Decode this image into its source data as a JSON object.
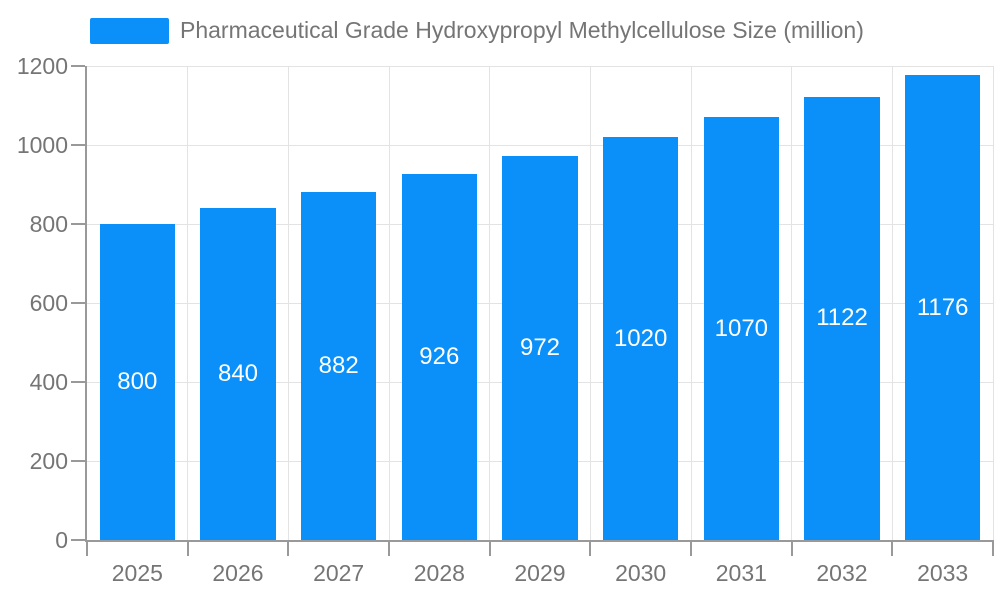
{
  "chart_data": {
    "type": "bar",
    "title": "Pharmaceutical Grade Hydroxypropyl Methylcellulose Size (million)",
    "categories": [
      "2025",
      "2026",
      "2027",
      "2028",
      "2029",
      "2030",
      "2031",
      "2032",
      "2033"
    ],
    "values": [
      800,
      840,
      882,
      926,
      972,
      1020,
      1070,
      1122,
      1176
    ],
    "xlabel": "",
    "ylabel": "",
    "ylim": [
      0,
      1200
    ],
    "y_ticks": [
      0,
      200,
      400,
      600,
      800,
      1000,
      1200
    ],
    "grid": "on",
    "legend_position": "top-left",
    "bar_label_position": "inside-center",
    "colors": {
      "bar": "#0a90f8",
      "bar_label": "#ffffff",
      "axis_text": "#757575",
      "axis_line": "#999999",
      "grid_line": "#e3e3e3",
      "background": "#ffffff"
    }
  },
  "legend": {
    "items": [
      {
        "label": "Pharmaceutical Grade Hydroxypropyl Methylcellulose Size (million)",
        "swatch_color": "#0a90f8"
      }
    ]
  }
}
